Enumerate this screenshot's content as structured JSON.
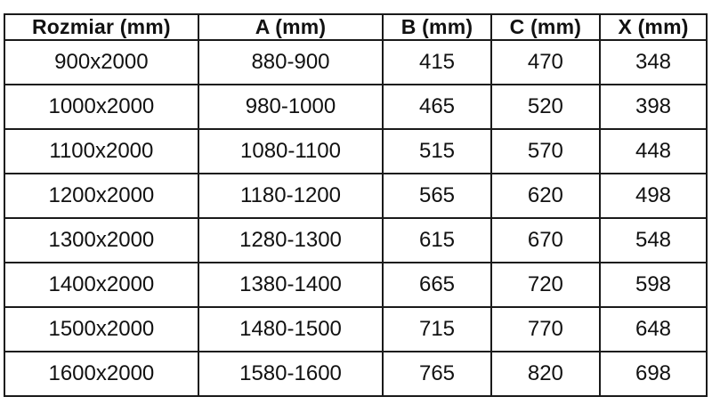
{
  "table": {
    "columns": [
      "Rozmiar (mm)",
      "A (mm)",
      "B (mm)",
      "C (mm)",
      "X (mm)"
    ],
    "rows": [
      [
        "900x2000",
        "880-900",
        "415",
        "470",
        "348"
      ],
      [
        "1000x2000",
        "980-1000",
        "465",
        "520",
        "398"
      ],
      [
        "1100x2000",
        "1080-1100",
        "515",
        "570",
        "448"
      ],
      [
        "1200x2000",
        "1180-1200",
        "565",
        "620",
        "498"
      ],
      [
        "1300x2000",
        "1280-1300",
        "615",
        "670",
        "548"
      ],
      [
        "1400x2000",
        "1380-1400",
        "665",
        "720",
        "598"
      ],
      [
        "1500x2000",
        "1480-1500",
        "715",
        "770",
        "648"
      ],
      [
        "1600x2000",
        "1580-1600",
        "765",
        "820",
        "698"
      ]
    ],
    "colors": {
      "border": "#1a1a1a",
      "text": "#111111",
      "background": "#ffffff"
    }
  }
}
